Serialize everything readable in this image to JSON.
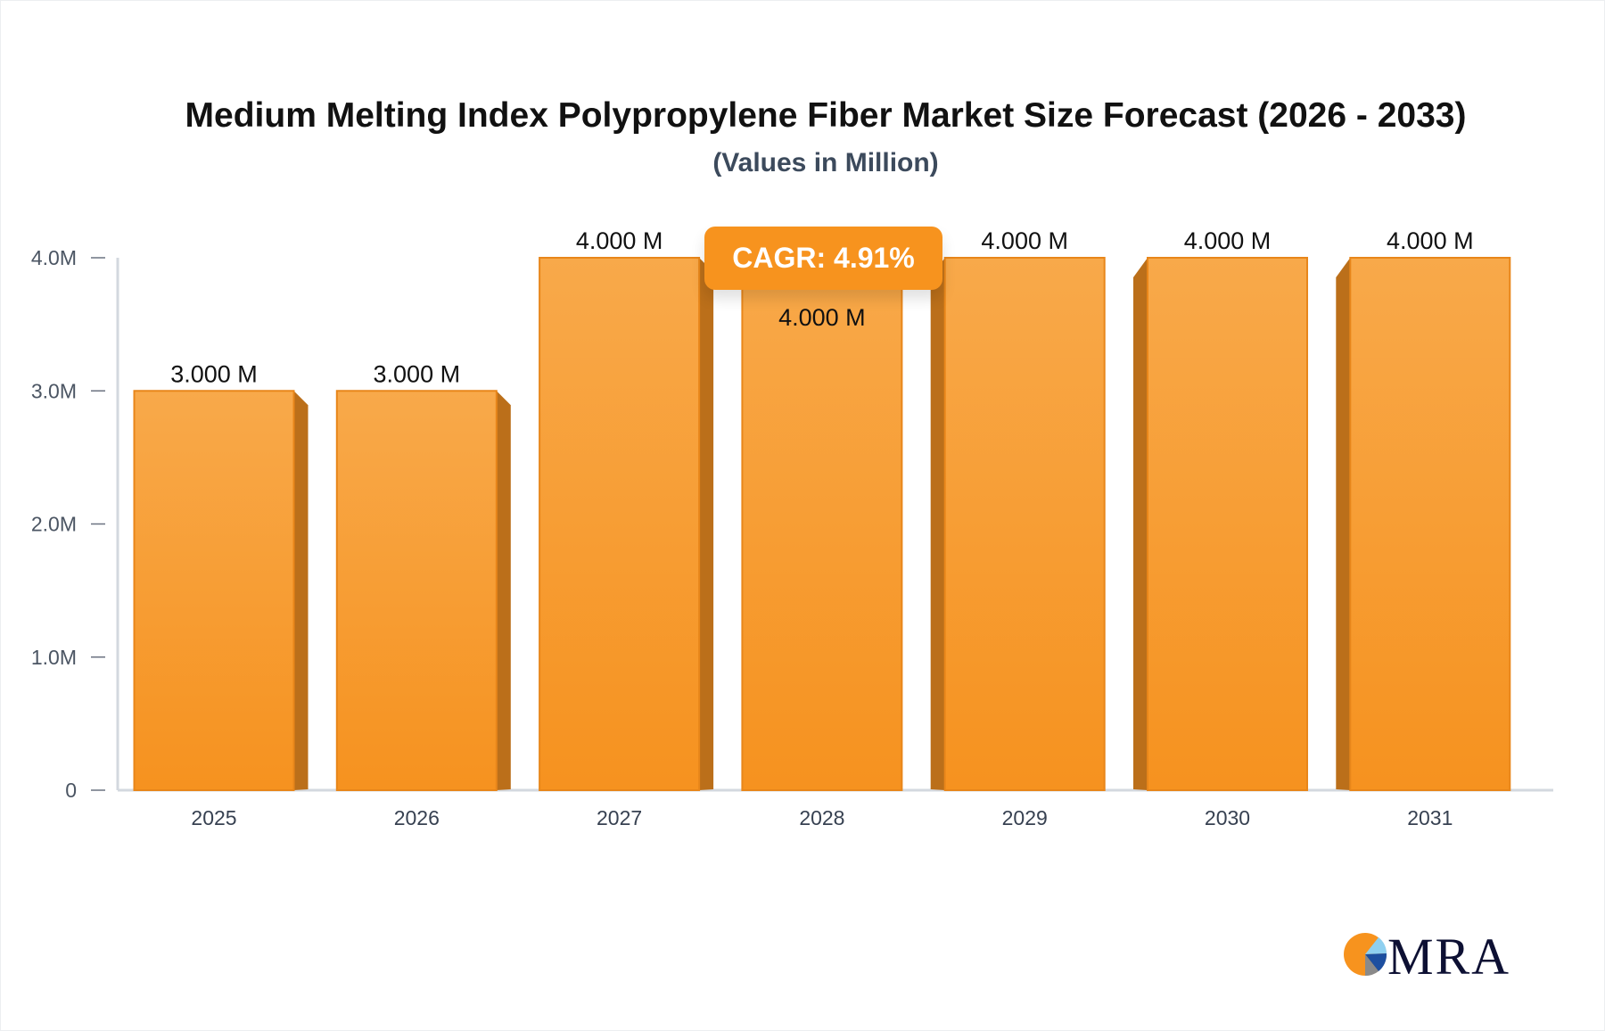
{
  "chart_data": {
    "type": "bar",
    "title": "Medium Melting Index Polypropylene Fiber Market Size Forecast (2026 - 2033)",
    "subtitle": "(Values in Million)",
    "categories": [
      "2025",
      "2026",
      "2027",
      "2028",
      "2029",
      "2030",
      "2031"
    ],
    "values": [
      3.0,
      3.0,
      4.0,
      4.0,
      4.0,
      4.0,
      4.0
    ],
    "data_labels": [
      "3.000 M",
      "3.000 M",
      "4.000 M",
      "4.000 M",
      "4.000 M",
      "4.000 M",
      "4.000 M"
    ],
    "y_ticks": [
      0,
      1,
      2,
      3,
      4
    ],
    "y_tick_labels": [
      "0",
      "1.0M",
      "2.0M",
      "3.0M",
      "4.0M"
    ],
    "ylim": [
      0,
      4
    ],
    "grid": false,
    "bar_color": "#f7931e",
    "bar_side_color": "#bb6f1a",
    "annotation": "CAGR: 4.91%"
  },
  "logo": {
    "text": "MRA",
    "colors": {
      "orange": "#f7931e",
      "navy": "#0d1033",
      "light_blue": "#8fd0f0",
      "blue": "#1d4fa0",
      "gray": "#8a8a8a"
    }
  }
}
